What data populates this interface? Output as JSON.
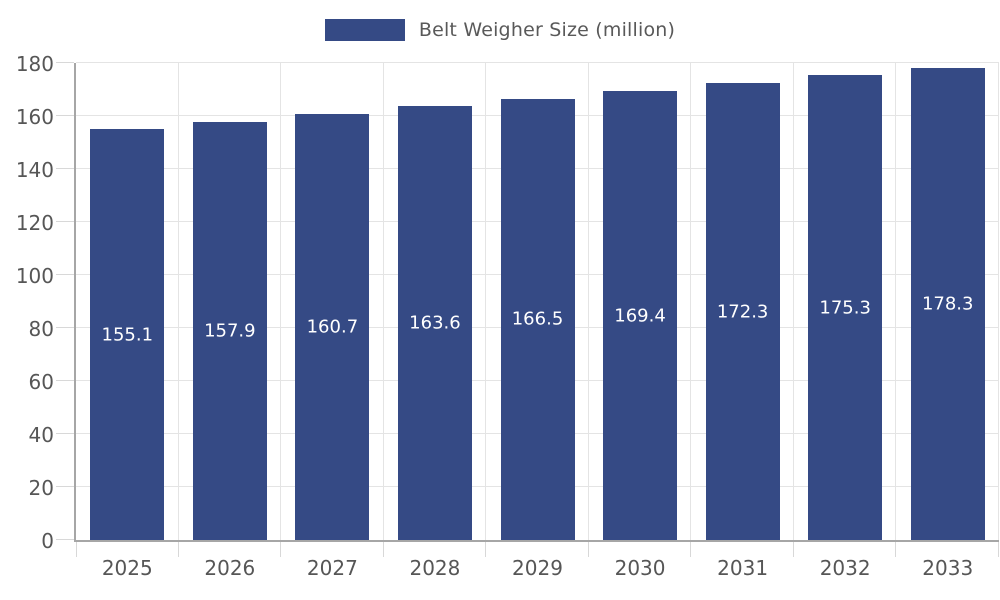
{
  "chart_data": {
    "type": "bar",
    "legend_label": "Belt Weigher Size (million)",
    "categories": [
      "2025",
      "2026",
      "2027",
      "2028",
      "2029",
      "2030",
      "2031",
      "2032",
      "2033"
    ],
    "series": [
      {
        "name": "Belt Weigher Size (million)",
        "values": [
          155.1,
          157.9,
          160.7,
          163.6,
          166.5,
          169.4,
          172.3,
          175.3,
          178.3
        ]
      }
    ],
    "value_label_decimals": 1,
    "ylim": [
      0,
      180
    ],
    "yticks": [
      0,
      20,
      40,
      60,
      80,
      100,
      120,
      140,
      160,
      180
    ],
    "grid": "both",
    "legend_position": "top-center",
    "colors": {
      "bar": "#354a85",
      "grid": "#e4e4e4",
      "axis": "#a6a6a6",
      "tick": "#d8d8d8",
      "tick_label": "#565656",
      "value_label": "#ffffff",
      "legend_text": "#595959",
      "background": "#ffffff"
    }
  }
}
